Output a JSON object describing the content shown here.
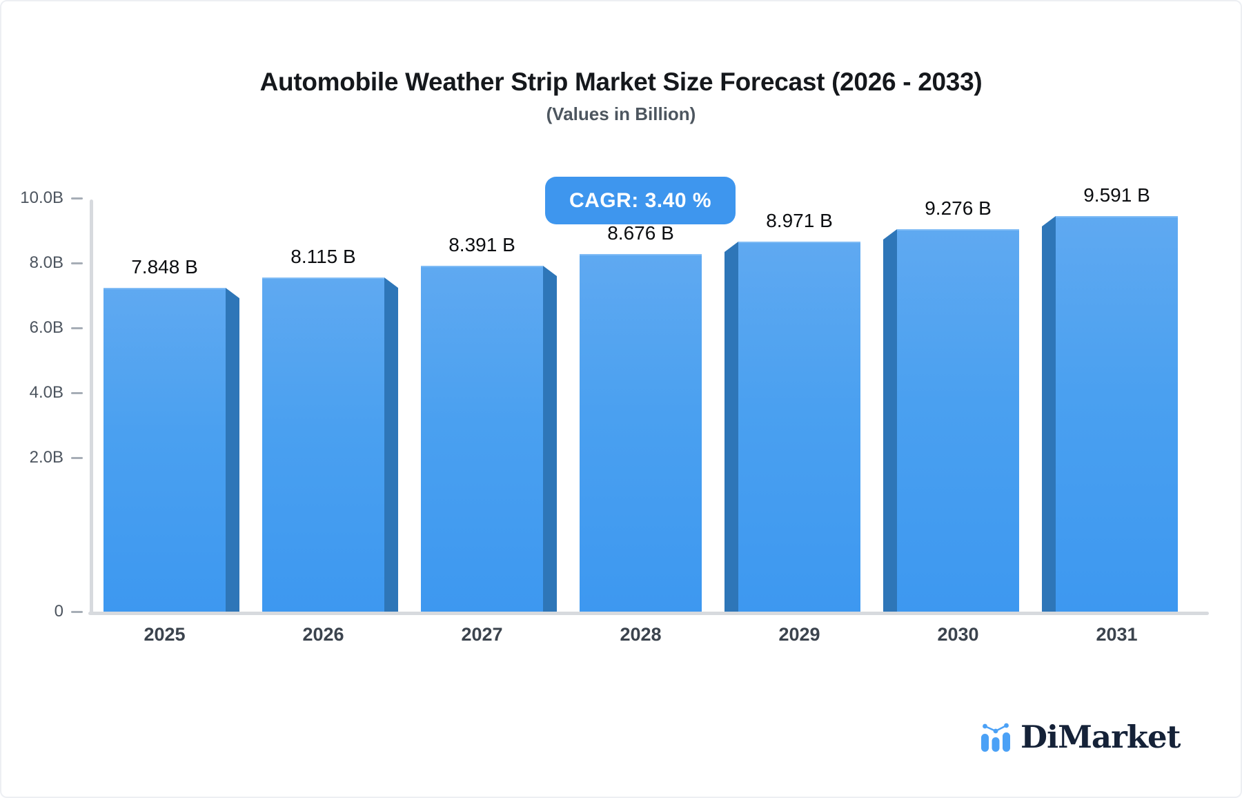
{
  "title": "Automobile Weather Strip Market Size Forecast (2026 - 2033)",
  "subtitle": "(Values in Billion)",
  "badge": {
    "text": "CAGR: 3.40 %"
  },
  "brand": {
    "name": "DiMarket",
    "icon": "mini-bar-chart-logo-icon"
  },
  "colors": {
    "bar_face_top": "#5FA9F1",
    "bar_face_bottom": "#3D98F0",
    "bar_side": "#2E76B8",
    "badge_bg": "#3E96EE",
    "badge_text": "#FFFFFF",
    "axis_line": "#D7DADE",
    "tick_dash": "#A6ADB6",
    "tick_text": "#4C545E",
    "year_text": "#3B434D",
    "value_text": "#0C0E11",
    "logo_text": "#152238",
    "logo_icon": "#4BA1F6"
  },
  "chart_data": {
    "type": "bar",
    "title": "Automobile Weather Strip Market Size Forecast (2026 - 2033)",
    "subtitle": "(Values in Billion)",
    "cagr_label": "CAGR: 3.40 %",
    "categories": [
      "2025",
      "2026",
      "2027",
      "2028",
      "2029",
      "2030",
      "2031"
    ],
    "values": [
      7.848,
      8.115,
      8.391,
      8.676,
      8.971,
      9.276,
      9.591
    ],
    "value_labels": [
      "7.848 B",
      "8.115 B",
      "8.391 B",
      "8.676 B",
      "8.971 B",
      "9.276 B",
      "9.591 B"
    ],
    "y_ticks": [
      "10.0B",
      "8.0B",
      "6.0B",
      "4.0B",
      "2.0B",
      "0"
    ],
    "ylim": [
      0,
      10
    ],
    "unit": "Billion",
    "grid": false,
    "legend": false,
    "bar_style": "3d-extruded"
  }
}
